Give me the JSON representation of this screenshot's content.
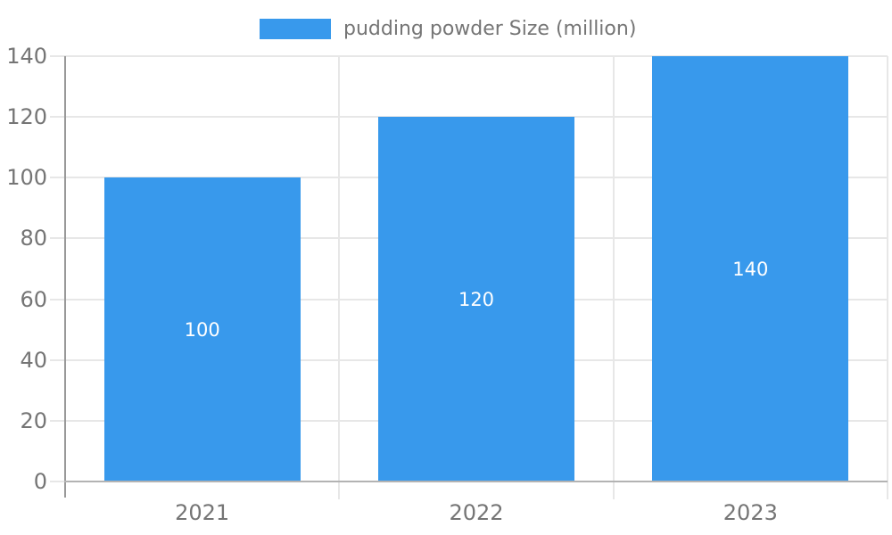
{
  "chart_data": {
    "type": "bar",
    "title": "",
    "legend": {
      "label": "pudding powder Size (million)",
      "position": "top"
    },
    "categories": [
      "2021",
      "2022",
      "2023"
    ],
    "values": [
      100,
      120,
      140
    ],
    "data_labels": [
      "100",
      "120",
      "140"
    ],
    "xlabel": "",
    "ylabel": "",
    "ylim": [
      0,
      140
    ],
    "yticks": [
      0,
      20,
      40,
      60,
      80,
      100,
      120,
      140
    ],
    "grid": true,
    "legend_visible": true,
    "colors": {
      "bar": "#3899EC",
      "label_text": "#757575",
      "bar_value_text": "#FFFFFF",
      "gridline": "#E7E7E7",
      "y_axis_line": "#999999",
      "x_axis_line": "#B3B3B3",
      "background": "#FFFFFF"
    }
  }
}
